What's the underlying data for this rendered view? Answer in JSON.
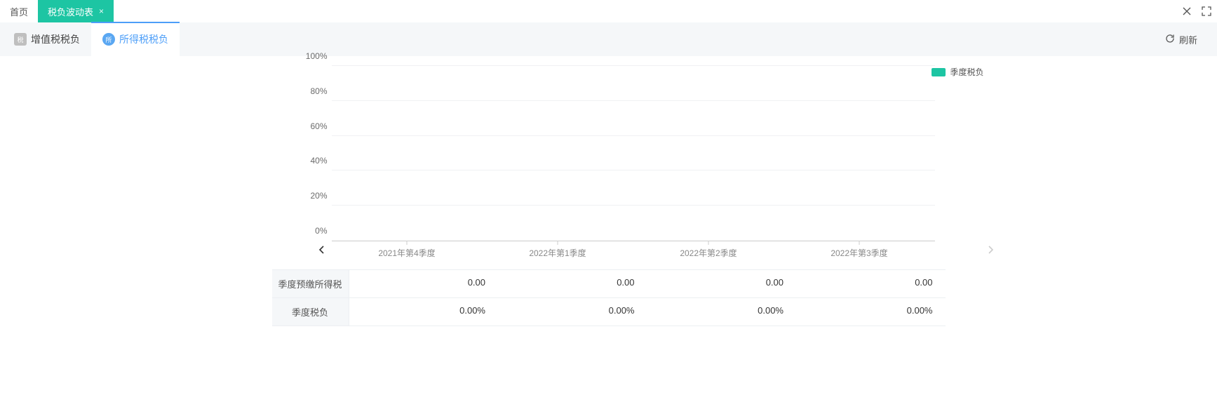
{
  "topbar": {
    "home_label": "首页",
    "active_tab_label": "税负波动表",
    "close_glyph": "×"
  },
  "subtabs": {
    "vat_label": "增值税税负",
    "income_label": "所得税税负"
  },
  "actions": {
    "refresh_label": "刷新"
  },
  "chart": {
    "type": "bar",
    "legend_label": "季度税负",
    "legend_color": "#1dc5a3",
    "y_ticks": [
      "0%",
      "20%",
      "40%",
      "60%",
      "80%",
      "100%"
    ],
    "y_positions_pct": [
      0,
      20,
      40,
      60,
      80,
      100
    ],
    "ylim": [
      0,
      100
    ],
    "categories": [
      "2021年第4季度",
      "2022年第1季度",
      "2022年第2季度",
      "2022年第3季度"
    ],
    "x_positions_pct": [
      12.5,
      37.5,
      62.5,
      87.5
    ],
    "values": [
      0,
      0,
      0,
      0
    ],
    "grid_color": "#f0f1f3",
    "axis_color": "#cccccc",
    "background_color": "#ffffff",
    "label_color": "#6b6b6b"
  },
  "table": {
    "rows": [
      {
        "label": "季度预缴所得税",
        "cells": [
          "0.00",
          "0.00",
          "0.00",
          "0.00"
        ]
      },
      {
        "label": "季度税负",
        "cells": [
          "0.00%",
          "0.00%",
          "0.00%",
          "0.00%"
        ]
      }
    ]
  }
}
